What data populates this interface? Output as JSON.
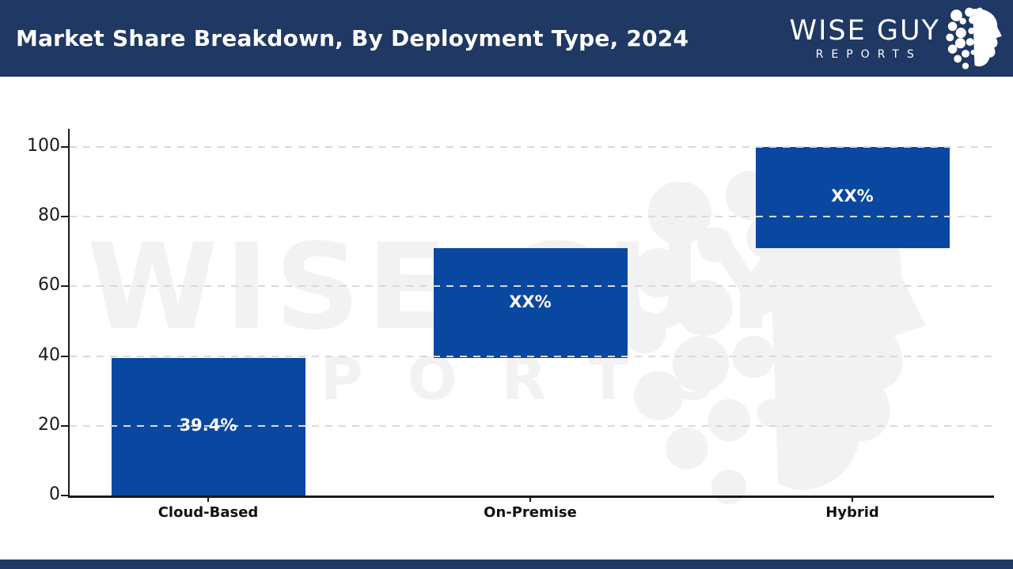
{
  "header": {
    "title": "Market Share Breakdown, By Deployment Type, 2024",
    "bg_color": "#1f3864",
    "logo": {
      "wise": "WISE GUY",
      "reports": "REPORTS"
    }
  },
  "watermark": {
    "wise": "WISE GUY",
    "reports": "REPORTS"
  },
  "chart_data": {
    "type": "bar",
    "subtype": "stacked-waterfall",
    "title": "Market Share Breakdown, By Deployment Type, 2024",
    "categories": [
      "Cloud-Based",
      "On-Premise",
      "Hybrid"
    ],
    "segments": [
      {
        "category": "Cloud-Based",
        "start": 0,
        "end": 39.4,
        "label": "39.4%"
      },
      {
        "category": "On-Premise",
        "start": 39.4,
        "end": 71,
        "label": "XX%"
      },
      {
        "category": "Hybrid",
        "start": 71,
        "end": 100,
        "label": "XX%"
      }
    ],
    "ylim": [
      0,
      100
    ],
    "yticks": [
      0,
      20,
      40,
      60,
      80,
      100
    ],
    "xlabel": "",
    "ylabel": "",
    "grid": {
      "horizontal": true,
      "style": "dashed",
      "color": "#d9d9d9"
    },
    "legend": "none",
    "bar_color": "#0a47a1",
    "bar_label_color": "#ffffff",
    "axis_color": "#1a1a1a"
  },
  "footer": {
    "bg_color": "#1f3864"
  }
}
